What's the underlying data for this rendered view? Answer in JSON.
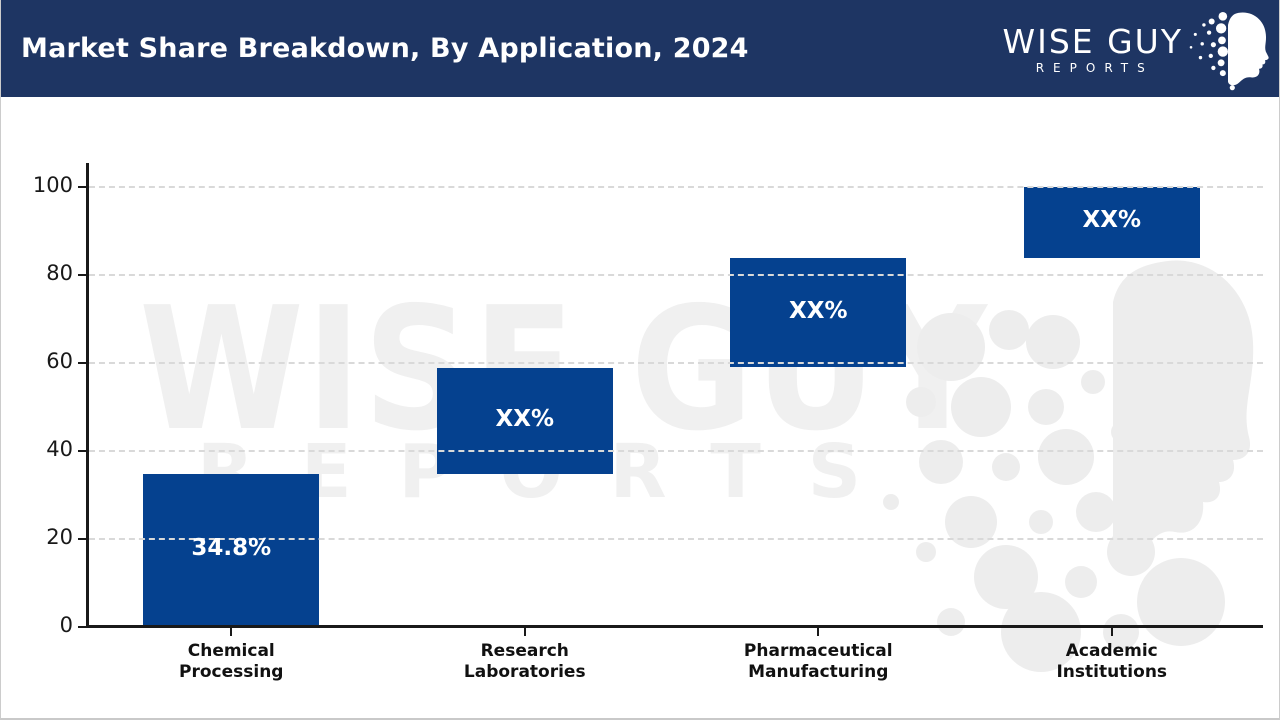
{
  "header": {
    "title": "Market Share Breakdown, By Application, 2024",
    "logo_line1": "WISE GUY",
    "logo_line2": "REPORTS"
  },
  "watermark": {
    "line1": "WISE GUY",
    "line2": "REPORTS"
  },
  "chart_data": {
    "type": "bar",
    "subtype": "waterfall",
    "title": "Market Share Breakdown, By Application, 2024",
    "categories": [
      "Chemical Processing",
      "Research Laboratories",
      "Pharmaceutical Manufacturing",
      "Academic Institutions"
    ],
    "bars": [
      {
        "category": "Chemical Processing",
        "start": 0,
        "end": 34.8,
        "label": "34.8%"
      },
      {
        "category": "Research Laboratories",
        "start": 34.8,
        "end": 59,
        "label": "XX%"
      },
      {
        "category": "Pharmaceutical Manufacturing",
        "start": 59,
        "end": 84,
        "label": "XX%"
      },
      {
        "category": "Academic Institutions",
        "start": 84,
        "end": 100,
        "label": "XX%"
      }
    ],
    "xlabel": "",
    "ylabel": "",
    "yticks": [
      0,
      20,
      40,
      60,
      80,
      100
    ],
    "ylim": [
      0,
      105.5
    ],
    "grid": "horizontal-dashed-over-bars",
    "legend": "none",
    "bar_color": "#05418f",
    "bar_label_color": "#ffffff"
  },
  "colors": {
    "header_bg": "#1e3563",
    "bar": "#05418f",
    "grid": "#d9d9d9",
    "axis": "#191919",
    "watermark": "#f0f0f0",
    "page_border": "#c9c9c9"
  }
}
